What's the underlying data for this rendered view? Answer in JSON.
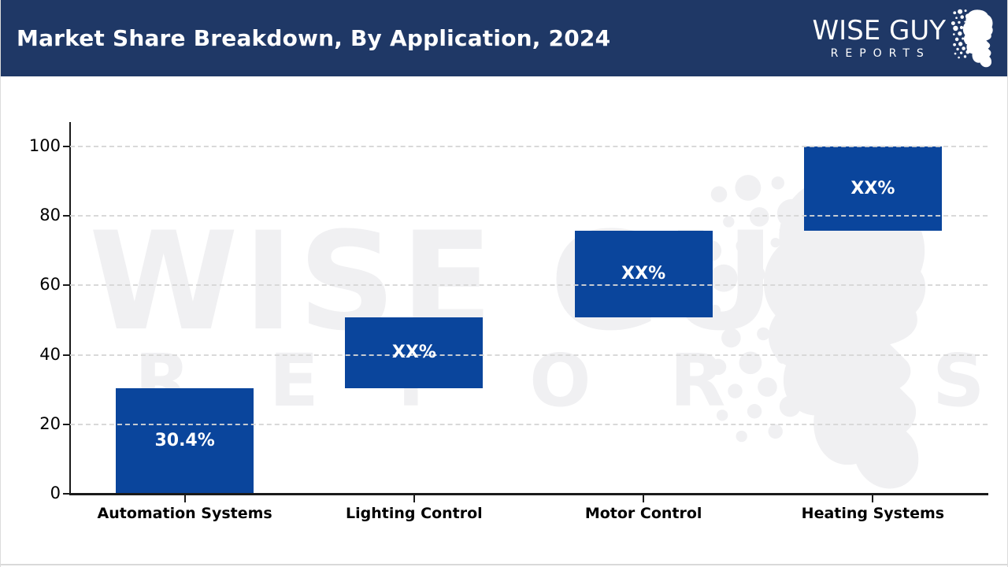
{
  "header": {
    "title": "Market Share Breakdown, By Application, 2024",
    "logo": {
      "wordmark": "WISE GUY",
      "subtext": "REPORTS"
    }
  },
  "watermark": {
    "line1": "WISE GUY",
    "line2": "R E P O R T S"
  },
  "colors": {
    "header_bg": "#1F3866",
    "bar_blue": "#0A459C",
    "label_white": "#FFFFFF",
    "gridline_gray": "#D6D6D6"
  },
  "chart_data": {
    "type": "bar",
    "subtype": "waterfall",
    "title": "Market Share Breakdown, By Application, 2024",
    "categories": [
      "Automation Systems",
      "Lighting Control",
      "Motor Control",
      "Heating Systems"
    ],
    "segments": [
      {
        "category": "Automation Systems",
        "start": 0,
        "end": 30.4,
        "label": "30.4%"
      },
      {
        "category": "Lighting Control",
        "start": 30.4,
        "end": 50.8,
        "label": "XX%"
      },
      {
        "category": "Motor Control",
        "start": 50.8,
        "end": 75.7,
        "label": "XX%"
      },
      {
        "category": "Heating Systems",
        "start": 75.7,
        "end": 100,
        "label": "XX%"
      }
    ],
    "xlabel": "",
    "ylabel": "",
    "y_ticks": [
      0,
      20,
      40,
      60,
      80,
      100
    ],
    "ylim": [
      0,
      107
    ],
    "grid": "horizontal-dashed",
    "legend": "none"
  }
}
